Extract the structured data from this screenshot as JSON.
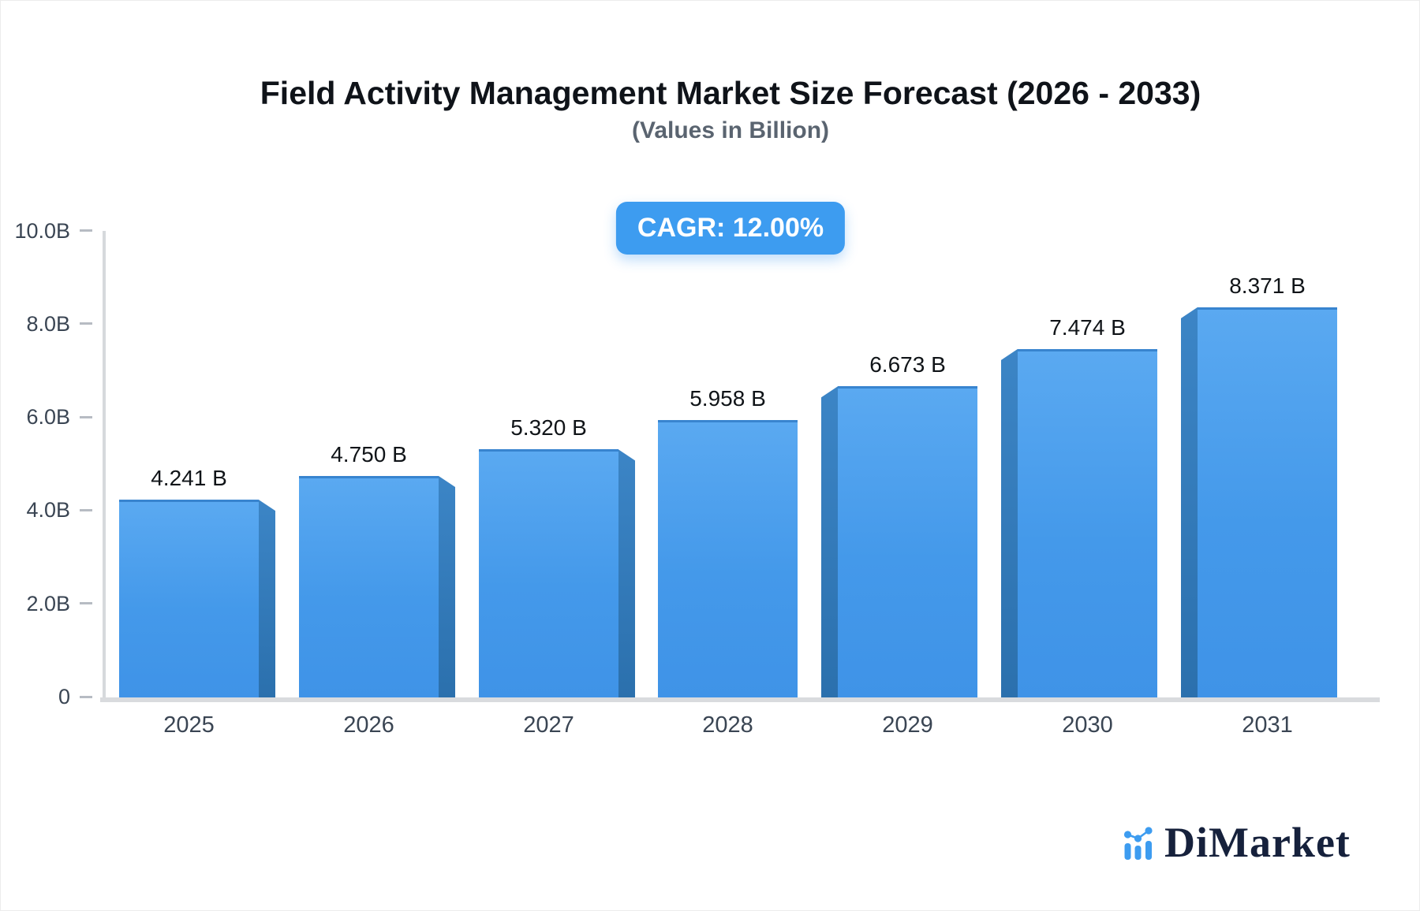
{
  "header": {
    "title": "Field Activity Management Market Size Forecast (2026 - 2033)",
    "subtitle": "(Values in Billion)",
    "badge": "CAGR: 12.00%"
  },
  "brand": {
    "name": "DiMarket",
    "icon": "bar-chart-logo-icon"
  },
  "colors": {
    "bar_front_top": "#5aa9f1",
    "bar_front_bottom": "#3f93e7",
    "bar_top_edge": "#3884cf",
    "bar_side": "#2b70ad",
    "badge_bg": "#3d9cf0",
    "axis_line": "#d6d9dc",
    "tick_label": "#3a4553",
    "value_label": "#101418",
    "title_text": "#0f1319",
    "subtitle_text": "#5a6470",
    "logo_text": "#16213c"
  },
  "chart_data": {
    "type": "bar",
    "title": "Field Activity Management Market Size Forecast (2026 - 2033)",
    "subtitle": "(Values in Billion)",
    "annotation": "CAGR: 12.00%",
    "categories": [
      "2025",
      "2026",
      "2027",
      "2028",
      "2029",
      "2030",
      "2031"
    ],
    "values": [
      4.241,
      4.75,
      5.32,
      5.958,
      6.673,
      7.474,
      8.371
    ],
    "value_labels": [
      "4.241 B",
      "4.750 B",
      "5.320 B",
      "5.958 B",
      "6.673 B",
      "7.474 B",
      "8.371 B"
    ],
    "unit": "Billion",
    "ylim": [
      0,
      10
    ],
    "y_ticks": [
      {
        "value": 0,
        "label": "0"
      },
      {
        "value": 2,
        "label": "2.0B"
      },
      {
        "value": 4,
        "label": "4.0B"
      },
      {
        "value": 6,
        "label": "6.0B"
      },
      {
        "value": 8,
        "label": "8.0B"
      },
      {
        "value": 10,
        "label": "10.0B"
      }
    ],
    "grid": false,
    "legend": false,
    "bar_style": "3d-extruded"
  }
}
